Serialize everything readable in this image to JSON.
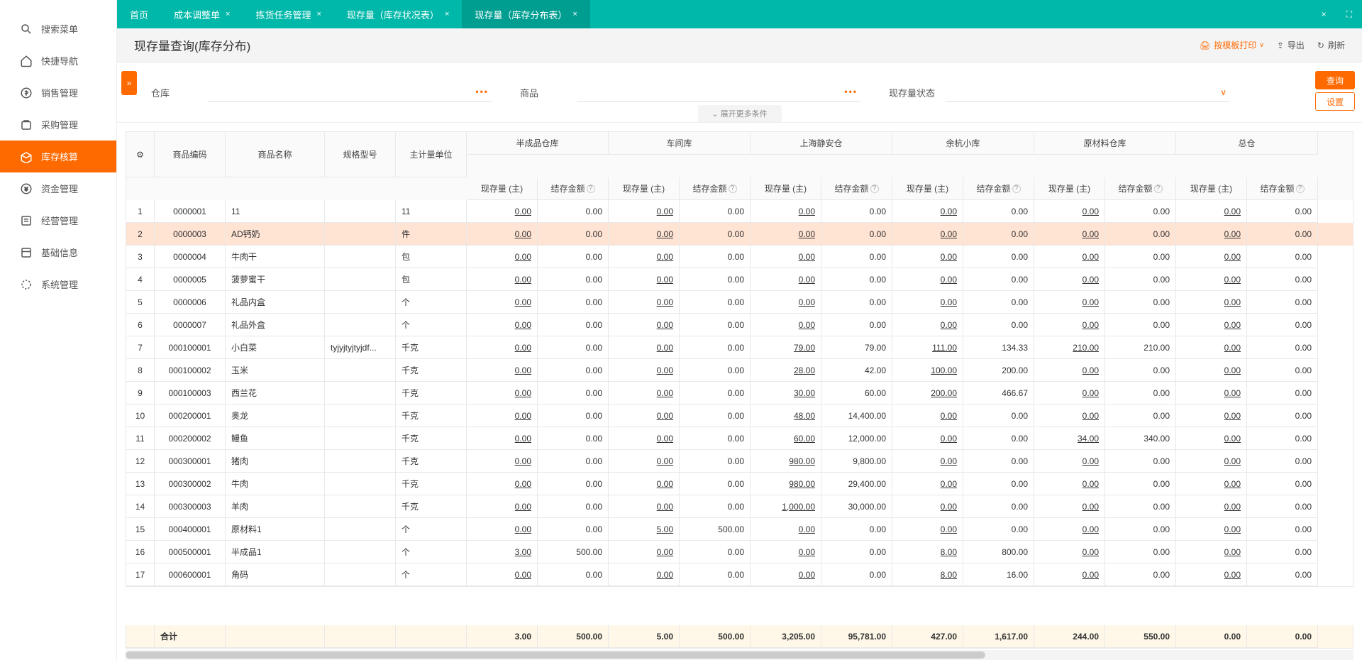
{
  "sidebar": {
    "items": [
      {
        "icon": "search",
        "label": "搜索菜单"
      },
      {
        "icon": "home",
        "label": "快捷导航"
      },
      {
        "icon": "sale",
        "label": "销售管理"
      },
      {
        "icon": "purchase",
        "label": "采购管理"
      },
      {
        "icon": "stock",
        "label": "库存核算",
        "active": true
      },
      {
        "icon": "fund",
        "label": "资金管理"
      },
      {
        "icon": "biz",
        "label": "经营管理"
      },
      {
        "icon": "base",
        "label": "基础信息"
      },
      {
        "icon": "sys",
        "label": "系统管理"
      }
    ]
  },
  "tabs": [
    {
      "label": "首页",
      "closable": false
    },
    {
      "label": "成本调整单",
      "closable": true
    },
    {
      "label": "拣货任务管理",
      "closable": true
    },
    {
      "label": "现存量（库存状况表）",
      "closable": true
    },
    {
      "label": "现存量（库存分布表）",
      "closable": true,
      "active": true
    }
  ],
  "page": {
    "title": "现存量查询(库存分布)",
    "print_btn": "按模板打印",
    "export_btn": "导出",
    "refresh_btn": "刷新"
  },
  "filters": {
    "warehouse_label": "仓库",
    "product_label": "商品",
    "status_label": "现存量状态",
    "query_btn": "查询",
    "settings_btn": "设置",
    "expand_label": "展开更多条件"
  },
  "table": {
    "gear": "⚙",
    "idx_label": "",
    "code_label": "商品编码",
    "name_label": "商品名称",
    "spec_label": "规格型号",
    "unit_label": "主计量单位",
    "qty_label": "现存量 (主)",
    "amt_label": "结存金额",
    "warehouses": [
      "半成品仓库",
      "车间库",
      "上海静安仓",
      "余杭小库",
      "原材料仓库",
      "总仓"
    ],
    "total_label": "合计",
    "rows": [
      {
        "idx": 1,
        "code": "0000001",
        "name": "11",
        "spec": "",
        "unit": "11",
        "vals": [
          [
            "0.00",
            "0.00"
          ],
          [
            "0.00",
            "0.00"
          ],
          [
            "0.00",
            "0.00"
          ],
          [
            "0.00",
            "0.00"
          ],
          [
            "0.00",
            "0.00"
          ],
          [
            "0.00",
            "0.00"
          ]
        ]
      },
      {
        "idx": 2,
        "code": "0000003",
        "name": "AD钙奶",
        "spec": "",
        "unit": "件",
        "highlighted": true,
        "vals": [
          [
            "0.00",
            "0.00"
          ],
          [
            "0.00",
            "0.00"
          ],
          [
            "0.00",
            "0.00"
          ],
          [
            "0.00",
            "0.00"
          ],
          [
            "0.00",
            "0.00"
          ],
          [
            "0.00",
            "0.00"
          ]
        ]
      },
      {
        "idx": 3,
        "code": "0000004",
        "name": "牛肉干",
        "spec": "",
        "unit": "包",
        "vals": [
          [
            "0.00",
            "0.00"
          ],
          [
            "0.00",
            "0.00"
          ],
          [
            "0.00",
            "0.00"
          ],
          [
            "0.00",
            "0.00"
          ],
          [
            "0.00",
            "0.00"
          ],
          [
            "0.00",
            "0.00"
          ]
        ]
      },
      {
        "idx": 4,
        "code": "0000005",
        "name": "菠萝蜜干",
        "spec": "",
        "unit": "包",
        "vals": [
          [
            "0.00",
            "0.00"
          ],
          [
            "0.00",
            "0.00"
          ],
          [
            "0.00",
            "0.00"
          ],
          [
            "0.00",
            "0.00"
          ],
          [
            "0.00",
            "0.00"
          ],
          [
            "0.00",
            "0.00"
          ]
        ]
      },
      {
        "idx": 5,
        "code": "0000006",
        "name": "礼品内盒",
        "spec": "",
        "unit": "个",
        "vals": [
          [
            "0.00",
            "0.00"
          ],
          [
            "0.00",
            "0.00"
          ],
          [
            "0.00",
            "0.00"
          ],
          [
            "0.00",
            "0.00"
          ],
          [
            "0.00",
            "0.00"
          ],
          [
            "0.00",
            "0.00"
          ]
        ]
      },
      {
        "idx": 6,
        "code": "0000007",
        "name": "礼品外盒",
        "spec": "",
        "unit": "个",
        "vals": [
          [
            "0.00",
            "0.00"
          ],
          [
            "0.00",
            "0.00"
          ],
          [
            "0.00",
            "0.00"
          ],
          [
            "0.00",
            "0.00"
          ],
          [
            "0.00",
            "0.00"
          ],
          [
            "0.00",
            "0.00"
          ]
        ]
      },
      {
        "idx": 7,
        "code": "000100001",
        "name": "小白菜",
        "spec": "tyjyjtyjtyjdf...",
        "unit": "千克",
        "vals": [
          [
            "0.00",
            "0.00"
          ],
          [
            "0.00",
            "0.00"
          ],
          [
            "79.00",
            "79.00"
          ],
          [
            "111.00",
            "134.33"
          ],
          [
            "210.00",
            "210.00"
          ],
          [
            "0.00",
            "0.00"
          ]
        ]
      },
      {
        "idx": 8,
        "code": "000100002",
        "name": "玉米",
        "spec": "",
        "unit": "千克",
        "vals": [
          [
            "0.00",
            "0.00"
          ],
          [
            "0.00",
            "0.00"
          ],
          [
            "28.00",
            "42.00"
          ],
          [
            "100.00",
            "200.00"
          ],
          [
            "0.00",
            "0.00"
          ],
          [
            "0.00",
            "0.00"
          ]
        ]
      },
      {
        "idx": 9,
        "code": "000100003",
        "name": "西兰花",
        "spec": "",
        "unit": "千克",
        "vals": [
          [
            "0.00",
            "0.00"
          ],
          [
            "0.00",
            "0.00"
          ],
          [
            "30.00",
            "60.00"
          ],
          [
            "200.00",
            "466.67"
          ],
          [
            "0.00",
            "0.00"
          ],
          [
            "0.00",
            "0.00"
          ]
        ]
      },
      {
        "idx": 10,
        "code": "000200001",
        "name": "奥龙",
        "spec": "",
        "unit": "千克",
        "vals": [
          [
            "0.00",
            "0.00"
          ],
          [
            "0.00",
            "0.00"
          ],
          [
            "48.00",
            "14,400.00"
          ],
          [
            "0.00",
            "0.00"
          ],
          [
            "0.00",
            "0.00"
          ],
          [
            "0.00",
            "0.00"
          ]
        ]
      },
      {
        "idx": 11,
        "code": "000200002",
        "name": "鳗鱼",
        "spec": "",
        "unit": "千克",
        "vals": [
          [
            "0.00",
            "0.00"
          ],
          [
            "0.00",
            "0.00"
          ],
          [
            "60.00",
            "12,000.00"
          ],
          [
            "0.00",
            "0.00"
          ],
          [
            "34.00",
            "340.00"
          ],
          [
            "0.00",
            "0.00"
          ]
        ]
      },
      {
        "idx": 12,
        "code": "000300001",
        "name": "猪肉",
        "spec": "",
        "unit": "千克",
        "vals": [
          [
            "0.00",
            "0.00"
          ],
          [
            "0.00",
            "0.00"
          ],
          [
            "980.00",
            "9,800.00"
          ],
          [
            "0.00",
            "0.00"
          ],
          [
            "0.00",
            "0.00"
          ],
          [
            "0.00",
            "0.00"
          ]
        ]
      },
      {
        "idx": 13,
        "code": "000300002",
        "name": "牛肉",
        "spec": "",
        "unit": "千克",
        "vals": [
          [
            "0.00",
            "0.00"
          ],
          [
            "0.00",
            "0.00"
          ],
          [
            "980.00",
            "29,400.00"
          ],
          [
            "0.00",
            "0.00"
          ],
          [
            "0.00",
            "0.00"
          ],
          [
            "0.00",
            "0.00"
          ]
        ]
      },
      {
        "idx": 14,
        "code": "000300003",
        "name": "羊肉",
        "spec": "",
        "unit": "千克",
        "vals": [
          [
            "0.00",
            "0.00"
          ],
          [
            "0.00",
            "0.00"
          ],
          [
            "1,000.00",
            "30,000.00"
          ],
          [
            "0.00",
            "0.00"
          ],
          [
            "0.00",
            "0.00"
          ],
          [
            "0.00",
            "0.00"
          ]
        ]
      },
      {
        "idx": 15,
        "code": "000400001",
        "name": "原材料1",
        "spec": "",
        "unit": "个",
        "vals": [
          [
            "0.00",
            "0.00"
          ],
          [
            "5.00",
            "500.00"
          ],
          [
            "0.00",
            "0.00"
          ],
          [
            "0.00",
            "0.00"
          ],
          [
            "0.00",
            "0.00"
          ],
          [
            "0.00",
            "0.00"
          ]
        ]
      },
      {
        "idx": 16,
        "code": "000500001",
        "name": "半成品1",
        "spec": "",
        "unit": "个",
        "vals": [
          [
            "3.00",
            "500.00"
          ],
          [
            "0.00",
            "0.00"
          ],
          [
            "0.00",
            "0.00"
          ],
          [
            "8.00",
            "800.00"
          ],
          [
            "0.00",
            "0.00"
          ],
          [
            "0.00",
            "0.00"
          ]
        ]
      },
      {
        "idx": 17,
        "code": "000600001",
        "name": "角码",
        "spec": "",
        "unit": "个",
        "vals": [
          [
            "0.00",
            "0.00"
          ],
          [
            "0.00",
            "0.00"
          ],
          [
            "0.00",
            "0.00"
          ],
          [
            "8.00",
            "16.00"
          ],
          [
            "0.00",
            "0.00"
          ],
          [
            "0.00",
            "0.00"
          ]
        ]
      }
    ],
    "totals": [
      "3.00",
      "500.00",
      "5.00",
      "500.00",
      "3,205.00",
      "95,781.00",
      "427.00",
      "1,617.00",
      "244.00",
      "550.00",
      "0.00",
      "0.00"
    ]
  }
}
